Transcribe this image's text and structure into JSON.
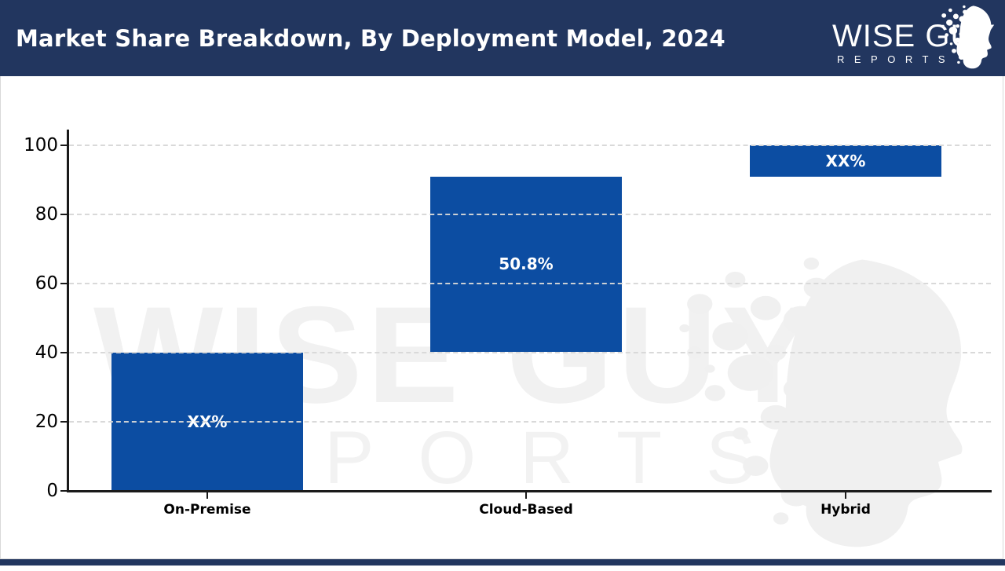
{
  "header": {
    "title": "Market Share Breakdown, By Deployment Model, 2024",
    "logo": {
      "line1": "WISE GUY",
      "line2": "REPORTS"
    }
  },
  "watermark": {
    "line1": "WISE GUY",
    "line2": "REPORTS"
  },
  "chart_data": {
    "type": "bar",
    "subtype": "waterfall",
    "title": "Market Share Breakdown, By Deployment Model, 2024",
    "categories": [
      "On-Premise",
      "Cloud-Based",
      "Hybrid"
    ],
    "series": [
      {
        "name": "Market Share (%)",
        "segments": [
          {
            "category": "On-Premise",
            "start": 0,
            "end": 40,
            "label": "XX%"
          },
          {
            "category": "Cloud-Based",
            "start": 40.2,
            "end": 91,
            "label": "50.8%"
          },
          {
            "category": "Hybrid",
            "start": 91,
            "end": 100,
            "label": "XX%"
          }
        ]
      }
    ],
    "xlabel": "",
    "ylabel": "",
    "ylim": [
      0,
      100
    ],
    "yticks": [
      0,
      20,
      40,
      60,
      80,
      100
    ],
    "grid": "horizontal-dashed",
    "legend": "none",
    "bar_color": "#0C4DA2"
  },
  "colors": {
    "header_bg": "#22365F",
    "footer_bg": "#22365F",
    "bar": "#0C4DA2",
    "axis": "#1a1a1a",
    "gridline": "#d7d7d7",
    "watermark": "#f1f1f1"
  }
}
